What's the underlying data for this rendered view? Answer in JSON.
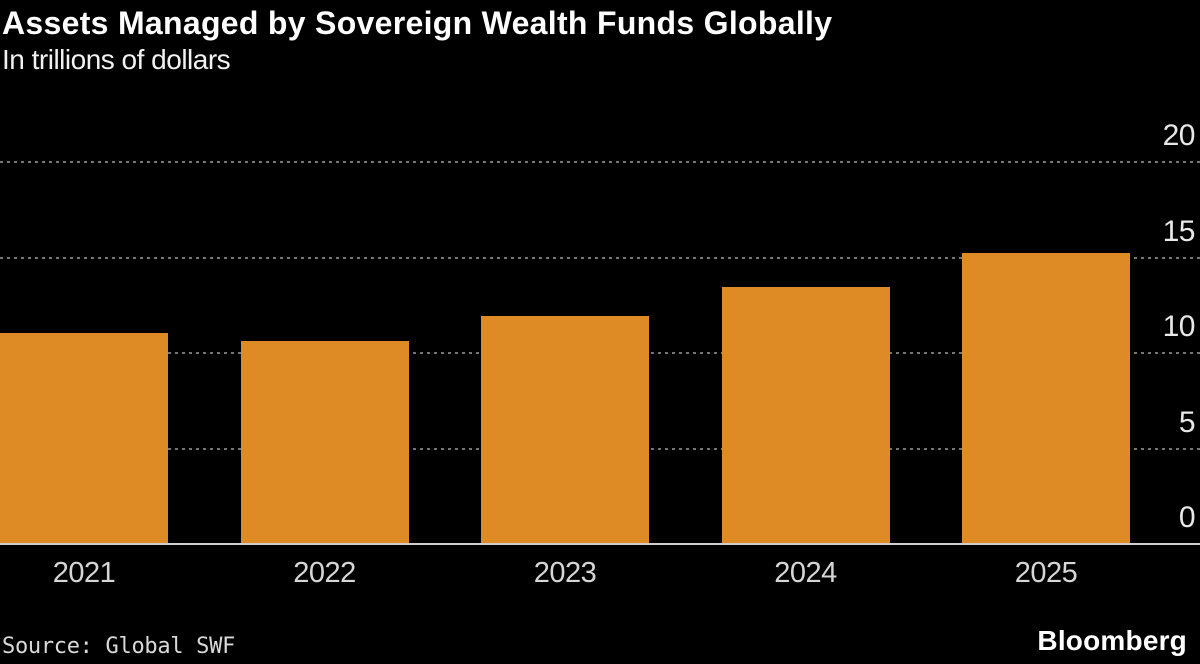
{
  "header": {
    "title": "Assets Managed by Sovereign Wealth Funds Globally",
    "subtitle": "In trillions of dollars"
  },
  "chart_data": {
    "type": "bar",
    "title": "Assets Managed by Sovereign Wealth Funds Globally",
    "subtitle": "In trillions of dollars",
    "categories": [
      "2021",
      "2022",
      "2023",
      "2024",
      "2025"
    ],
    "values": [
      11.0,
      10.6,
      11.9,
      13.4,
      15.2
    ],
    "unit": "trillions of dollars",
    "xlabel": "",
    "ylabel": "In trillions of dollars",
    "ylim": [
      0,
      20
    ],
    "yticks": [
      0,
      5,
      10,
      15,
      20
    ],
    "ytick_side": "right",
    "legend": "none",
    "grid": "horizontal-dotted",
    "bar_color": "#de8b26",
    "gridline_color": "#757575",
    "axis_line_color": "#cfcfcf",
    "background_color": "#000000"
  },
  "footer": {
    "source": "Source: Global SWF",
    "brand": "Bloomberg"
  }
}
